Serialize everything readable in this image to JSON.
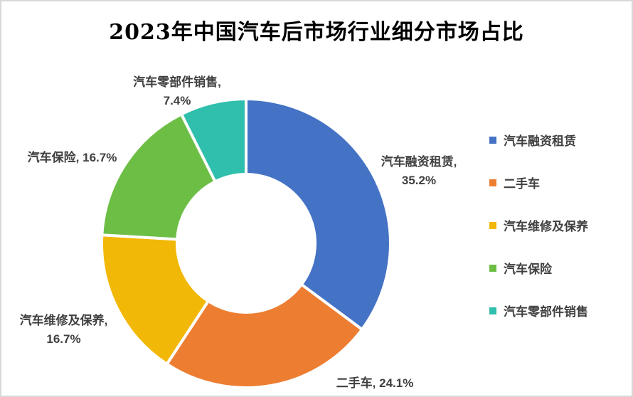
{
  "page": {
    "background": "#ffffff",
    "border_color": "#d9d9d9"
  },
  "title": "2023年中国汽车后市场行业细分市场占比",
  "chart_data": {
    "type": "pie",
    "subtype": "donut",
    "title": "2023年中国汽车后市场行业细分市场占比",
    "categories": [
      "汽车融资租赁",
      "二手车",
      "汽车维修及保养",
      "汽车保险",
      "汽车零部件销售"
    ],
    "values": [
      35.2,
      24.1,
      16.7,
      16.7,
      7.4
    ],
    "unit": "%",
    "colors": [
      "#4472C4",
      "#ED7D31",
      "#F2B807",
      "#6CBE45",
      "#2FBFAC"
    ],
    "start_angle_deg": 0,
    "direction": "clockwise",
    "donut_hole_ratio": 0.48,
    "slice_gap_color": "#ffffff",
    "legend_position": "right",
    "data_label_color": "#404040"
  },
  "callouts": {
    "financing_lease": {
      "line1": "汽车融资租赁,",
      "line2": "35.2%"
    },
    "used_car": {
      "line1": "二手车, 24.1%"
    },
    "repair_maintenance": {
      "line1": "汽车维修及保养,",
      "line2": "16.7%"
    },
    "insurance": {
      "line1": "汽车保险, 16.7%"
    },
    "parts_sales": {
      "line1": "汽车零部件销售,",
      "line2": "7.4%"
    }
  },
  "legend": {
    "items": [
      {
        "label": "汽车融资租赁",
        "color": "#4472C4"
      },
      {
        "label": "二手车",
        "color": "#ED7D31"
      },
      {
        "label": "汽车维修及保养",
        "color": "#F2B807"
      },
      {
        "label": "汽车保险",
        "color": "#6CBE45"
      },
      {
        "label": "汽车零部件销售",
        "color": "#2FBFAC"
      }
    ]
  }
}
